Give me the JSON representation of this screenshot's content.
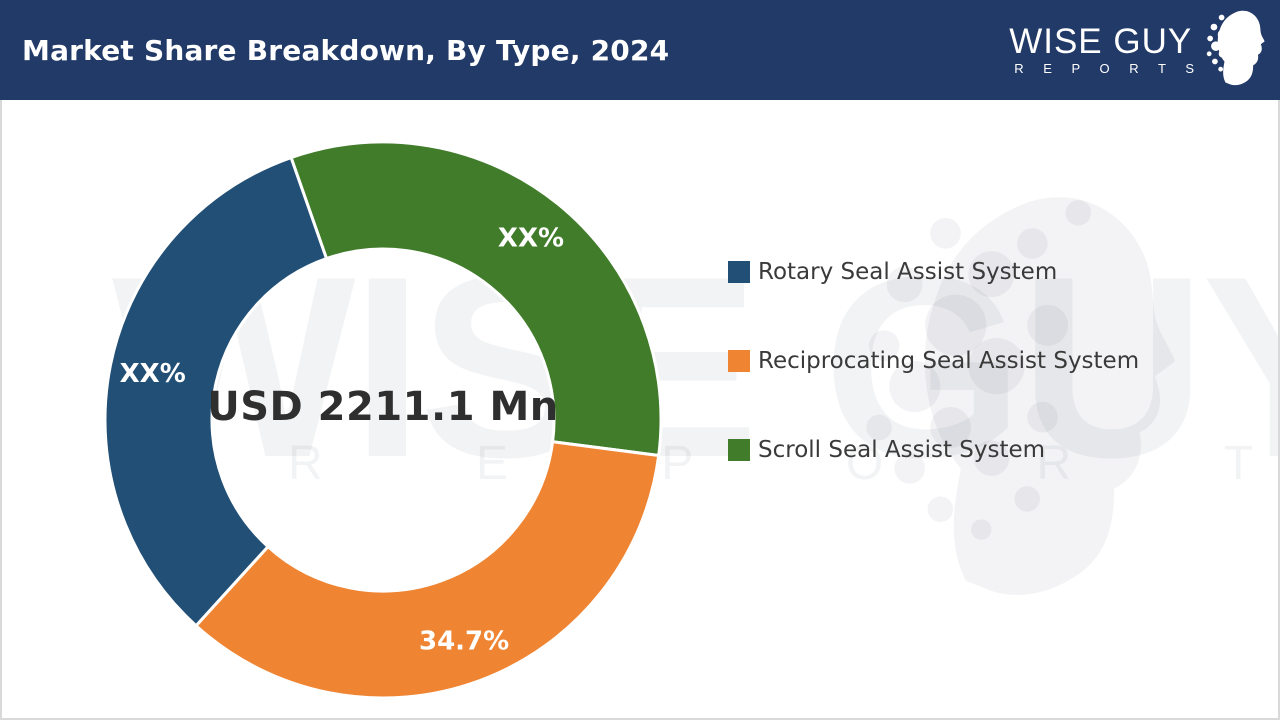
{
  "header": {
    "title": "Market Share Breakdown, By Type, 2024",
    "logo": {
      "line1": "WISE GUY",
      "line2": "R E P O R T S"
    }
  },
  "watermark": {
    "line1": "WISE GUY",
    "line2": "R E P O R T S"
  },
  "colors": {
    "header_bg": "#223A68",
    "rotary_blue": "#224F75",
    "reciprocating_orange": "#EF8432",
    "scroll_green": "#417C2B",
    "slice_label_text": "#FFFFFF",
    "center_text": "#2F2F2F",
    "legend_text": "#3A3A3A",
    "frame_border": "#D9D9D9"
  },
  "chart_data": {
    "type": "donut",
    "title": "Market Share Breakdown, By Type, 2024",
    "center_label": "USD 2211.1 Mn",
    "start_angle_deg": 340.7,
    "direction": "clockwise",
    "note": "Segments labeled XX% are masked in the source; their shares are estimated from arc angles.",
    "segments": [
      {
        "name": "Scroll Seal Assist System",
        "label": "XX%",
        "share_pct": 32.4,
        "color": "#417C2B"
      },
      {
        "name": "Reciprocating Seal Assist System",
        "label": "34.7%",
        "share_pct": 34.7,
        "color": "#EF8432"
      },
      {
        "name": "Rotary Seal Assist System",
        "label": "XX%",
        "share_pct": 32.9,
        "color": "#224F75"
      }
    ],
    "legend": [
      {
        "label": "Rotary Seal Assist System",
        "color": "#224F75"
      },
      {
        "label": "Reciprocating Seal Assist System",
        "color": "#EF8432"
      },
      {
        "label": "Scroll Seal Assist System",
        "color": "#417C2B"
      }
    ],
    "legend_position": "right"
  }
}
